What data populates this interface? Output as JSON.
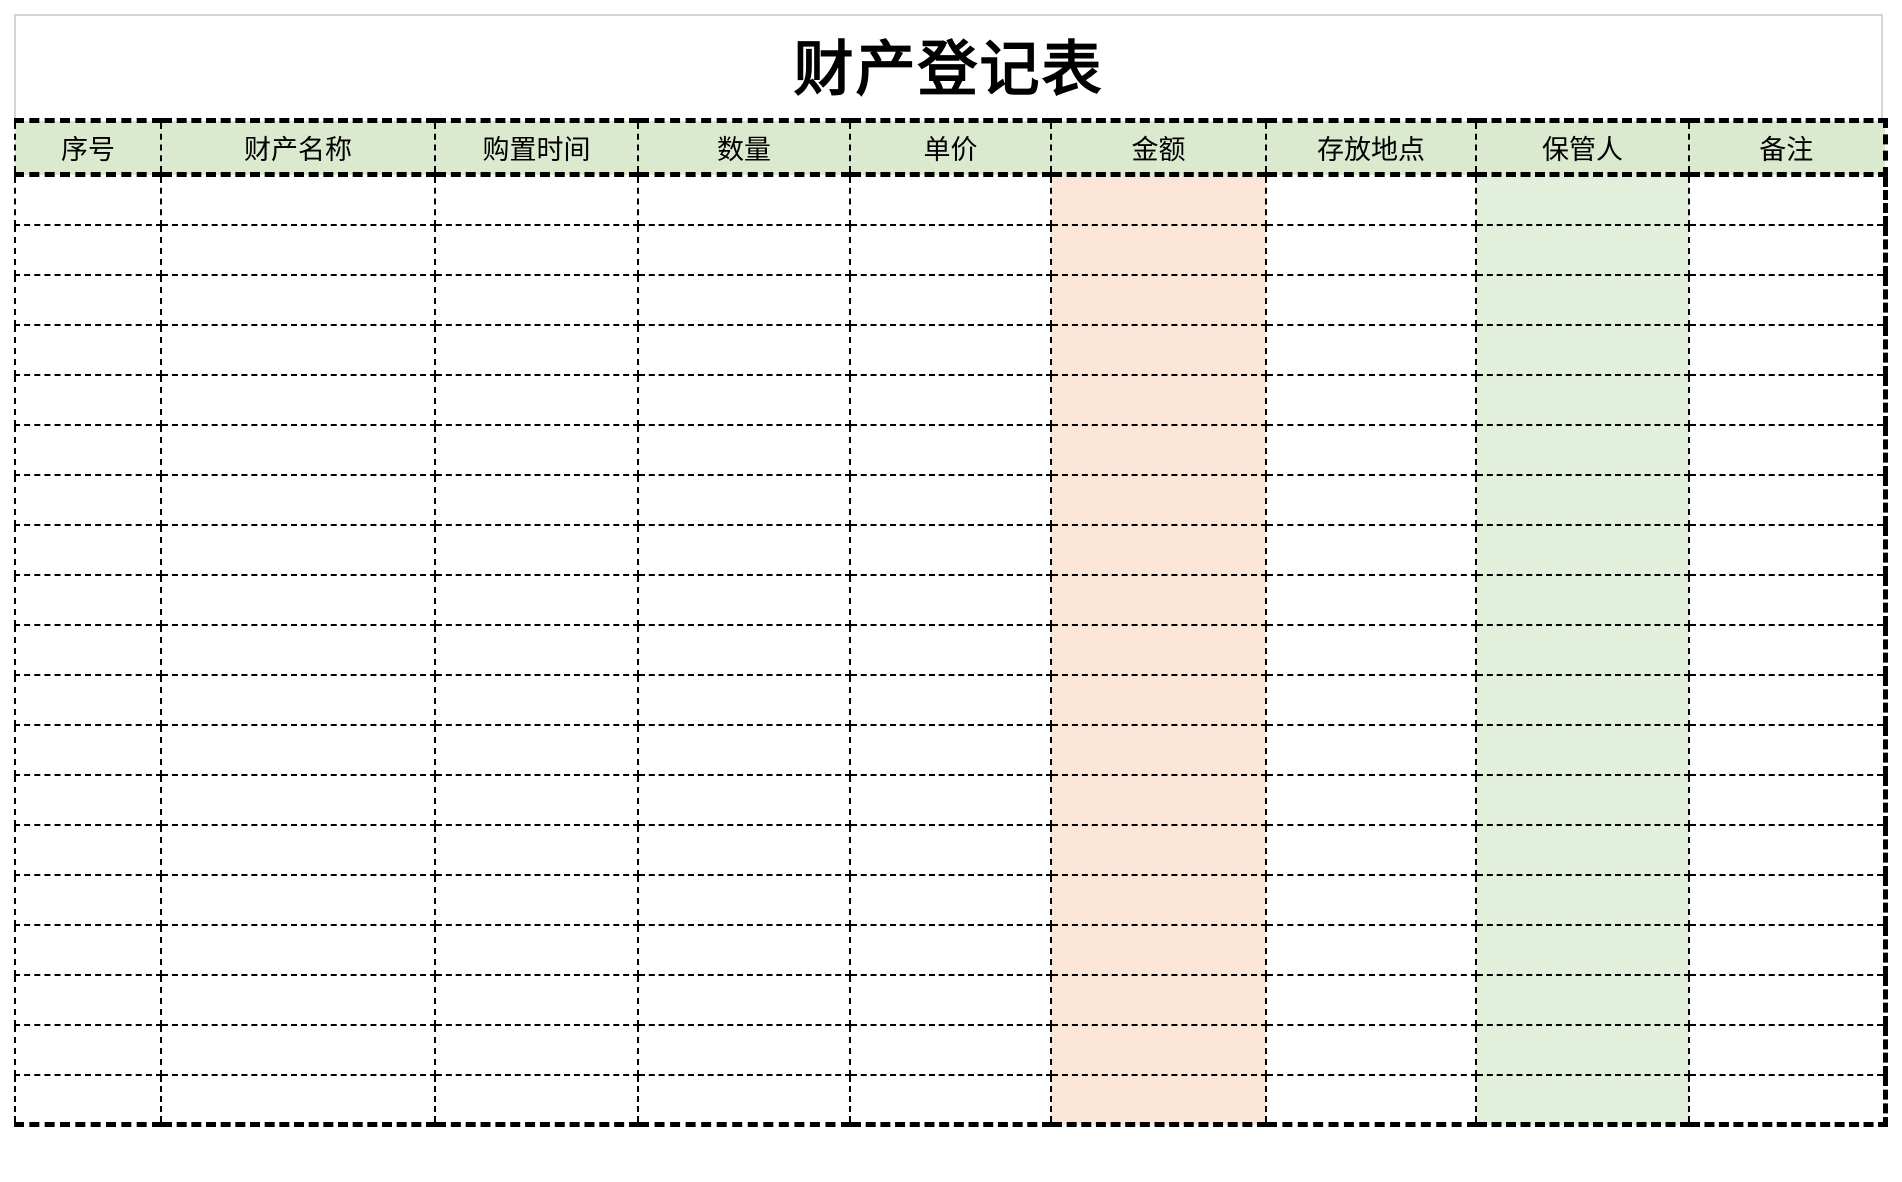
{
  "title": "财产登记表",
  "table": {
    "row_count": 19,
    "empty_cell_value": "",
    "columns": [
      {
        "key": "serial-number",
        "label": "序号",
        "highlight": null
      },
      {
        "key": "property-name",
        "label": "财产名称",
        "highlight": null
      },
      {
        "key": "purchase-date",
        "label": "购置时间",
        "highlight": null
      },
      {
        "key": "quantity",
        "label": "数量",
        "highlight": null
      },
      {
        "key": "unit-price",
        "label": "单价",
        "highlight": null
      },
      {
        "key": "amount",
        "label": "金额",
        "highlight": "amount_col_bg"
      },
      {
        "key": "storage-location",
        "label": "存放地点",
        "highlight": null
      },
      {
        "key": "custodian",
        "label": "保管人",
        "highlight": "custodian_col_bg"
      },
      {
        "key": "remarks",
        "label": "备注",
        "highlight": null
      }
    ]
  },
  "colors": {
    "header_bg": "#dbe9cf",
    "amount_col_bg": "#fbe5d6",
    "custodian_col_bg": "#e2efda",
    "border": "#000000",
    "frame_line": "#d4d4d4",
    "page_bg": "#ffffff"
  }
}
